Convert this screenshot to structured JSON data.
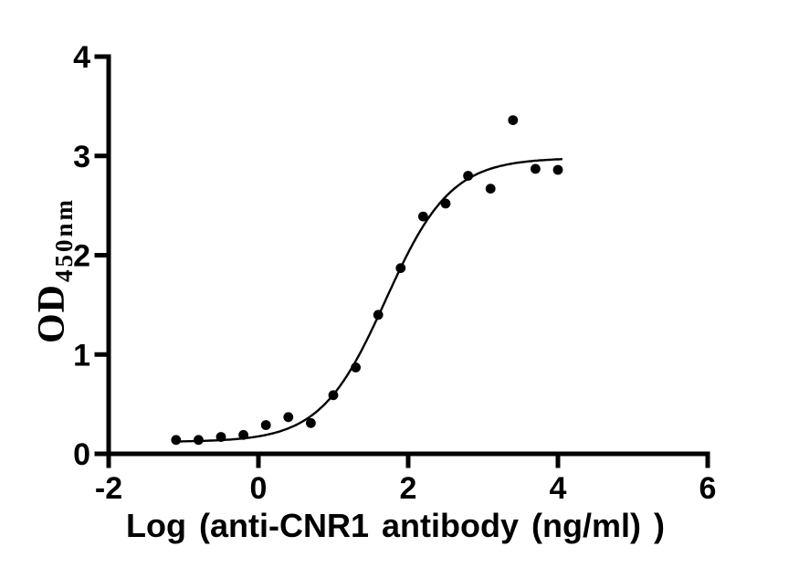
{
  "chart_data": {
    "type": "scatter",
    "title": "",
    "xlabel": "Log (anti-CNR1 antibody (ng/ml) )",
    "ylabel": "OD 450nm",
    "ylabel_main": "OD",
    "ylabel_sub": "450nm",
    "xlim": [
      -2,
      6
    ],
    "ylim": [
      0,
      4
    ],
    "x_tick_values": [
      -2,
      0,
      2,
      4,
      6
    ],
    "x_tick_labels": [
      "-2",
      "0",
      "2",
      "4",
      "6"
    ],
    "y_tick_values": [
      0,
      1,
      2,
      3,
      4
    ],
    "y_tick_labels": [
      "0",
      "1",
      "2",
      "3",
      "4"
    ],
    "grid": false,
    "legend": false,
    "background_color": "#ffffff",
    "axis_color": "#000000",
    "marker": {
      "shape": "circle",
      "color": "#000000",
      "radius_px": 5.4
    },
    "line_color": "#000000",
    "x": [
      -1.1,
      -0.8,
      -0.5,
      -0.2,
      0.1,
      0.4,
      0.7,
      1.0,
      1.3,
      1.6,
      1.9,
      2.2,
      2.5,
      2.8,
      3.1,
      3.4,
      3.7,
      4.0
    ],
    "y": [
      0.14,
      0.14,
      0.17,
      0.19,
      0.29,
      0.37,
      0.31,
      0.59,
      0.87,
      1.4,
      1.87,
      2.39,
      2.52,
      2.8,
      2.67,
      3.36,
      2.87,
      2.86
    ],
    "fit_curve": {
      "model": "four-parameter-logistic",
      "bottom": 0.12,
      "top": 2.98,
      "log_ec50": 1.7,
      "hill_slope": 1.0,
      "x_start": -1.12,
      "x_end": 4.06
    }
  }
}
